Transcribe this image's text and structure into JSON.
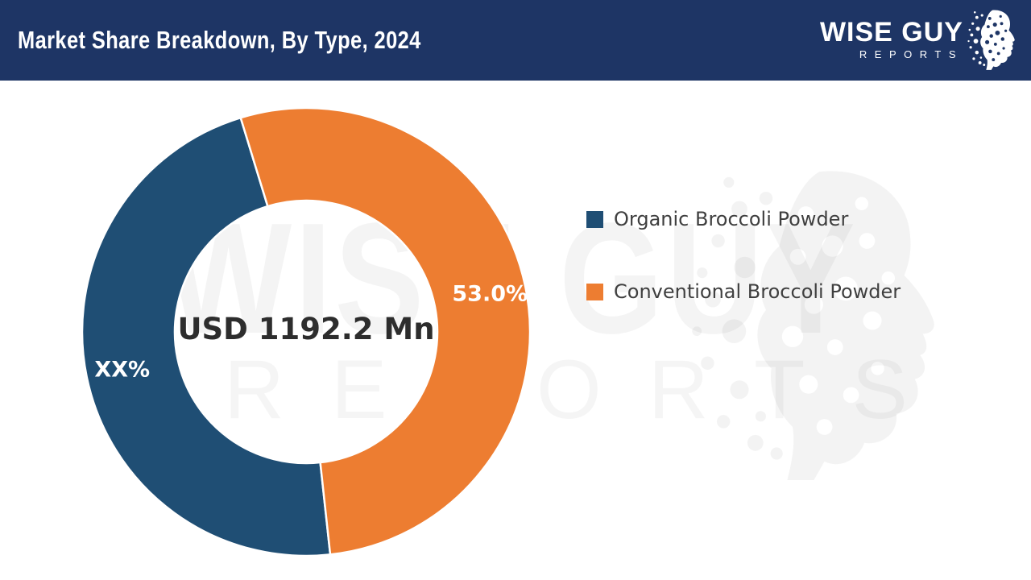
{
  "header": {
    "title": "Market Share Breakdown, By Type, 2024",
    "bg_color": "#1E3565"
  },
  "logo": {
    "name_top": "WISE GUY",
    "name_bottom": "REPORTS"
  },
  "watermark": {
    "line1": "WISE GUY",
    "line2": "REPORTS"
  },
  "chart_data": {
    "type": "pie",
    "subtype": "donut",
    "title": "Market Share Breakdown, By Type, 2024",
    "center_label": "USD 1192.2 Mn",
    "unit": "percent",
    "start_angle_deg": 173.8,
    "direction": "clockwise",
    "legend_position": "right",
    "slices": [
      {
        "name": "Organic Broccoli Powder",
        "data_label": "XX%",
        "value": 47,
        "color": "#1F4E74"
      },
      {
        "name": "Conventional Broccoli Powder",
        "data_label": "53.0%",
        "value": 53,
        "color": "#ED7D31"
      }
    ],
    "colors": {
      "header_bg": "#1E3565",
      "slice_label_text": "#FFFFFF",
      "center_text": "#2D2D2D",
      "legend_text": "#3F3F3F"
    }
  }
}
